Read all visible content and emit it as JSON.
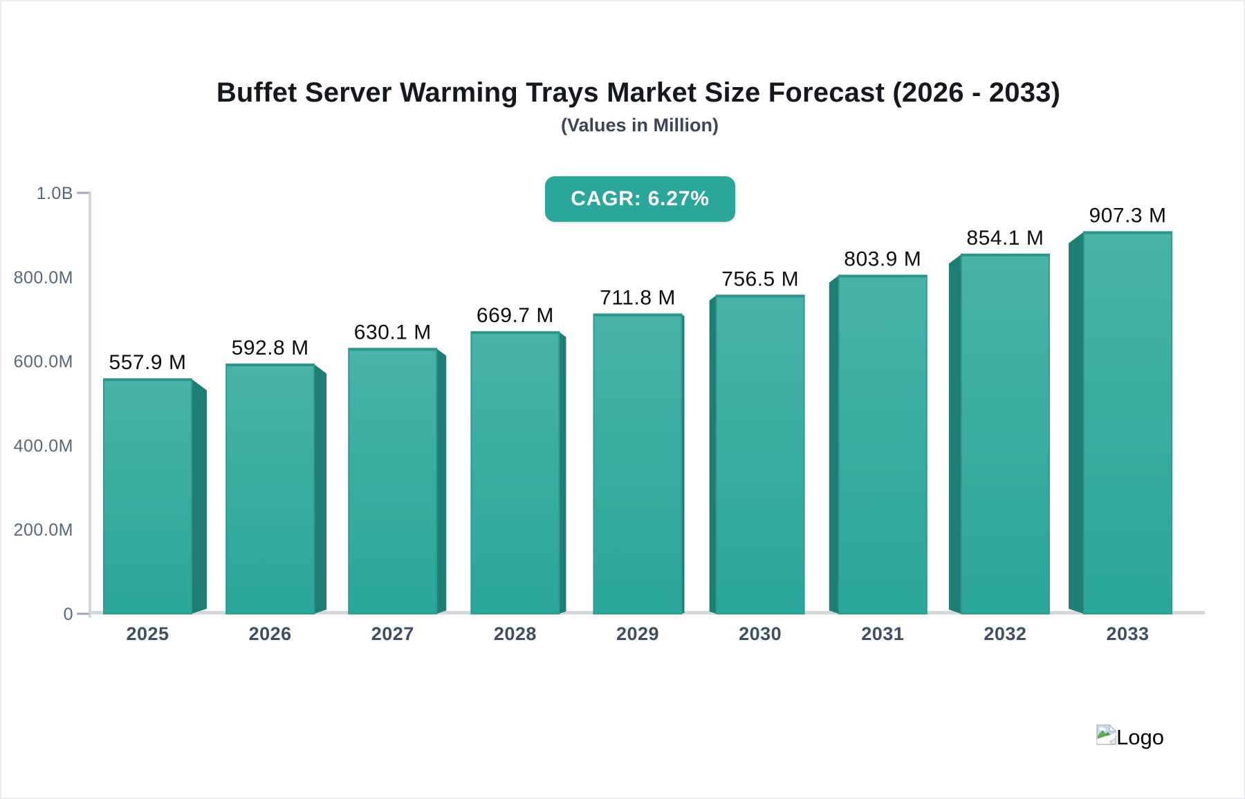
{
  "header": {
    "title": "Buffet Server Warming Trays Market Size Forecast (2026 - 2033)",
    "subtitle": "(Values in Million)",
    "cagr_label": "CAGR: 6.27%"
  },
  "chart_data": {
    "type": "bar",
    "title": "Buffet Server Warming Trays Market Size Forecast (2026 - 2033)",
    "subtitle": "(Values in Million)",
    "categories": [
      "2025",
      "2026",
      "2027",
      "2028",
      "2029",
      "2030",
      "2031",
      "2032",
      "2033"
    ],
    "values": [
      557.9,
      592.8,
      630.1,
      669.7,
      711.8,
      756.5,
      803.9,
      854.1,
      907.3
    ],
    "value_labels": [
      "557.9 M",
      "592.8 M",
      "630.1 M",
      "669.7 M",
      "711.8 M",
      "756.5 M",
      "803.9 M",
      "854.1 M",
      "907.3 M"
    ],
    "xlabel": "",
    "ylabel": "",
    "ylim": [
      0,
      1000
    ],
    "grid": false,
    "legend": "none",
    "y_axis": {
      "ticks": [
        {
          "value": 0,
          "label": "0",
          "dash": true
        },
        {
          "value": 200,
          "label": "200.0M",
          "dash": false
        },
        {
          "value": 400,
          "label": "400.0M",
          "dash": false
        },
        {
          "value": 600,
          "label": "600.0M",
          "dash": false
        },
        {
          "value": 800,
          "label": "800.0M",
          "dash": false
        },
        {
          "value": 1000,
          "label": "1.0B",
          "dash": true
        }
      ]
    },
    "colors": {
      "accent": "#2ba69a",
      "bar_face_top": "#48b3a6",
      "bar_face_bottom": "#2aa69a",
      "bar_side": "#1f7e74",
      "bar_outline": "#2f9a90",
      "bar_top_edge": "#2d948a",
      "axis_line": "#d3d7dd",
      "tick_dash": "#9fa8b4",
      "y_label": "#57677c",
      "x_label": "#3e4e63",
      "value_label": "#0c0c0c"
    }
  },
  "logo": {
    "alt_text": "Logo"
  }
}
